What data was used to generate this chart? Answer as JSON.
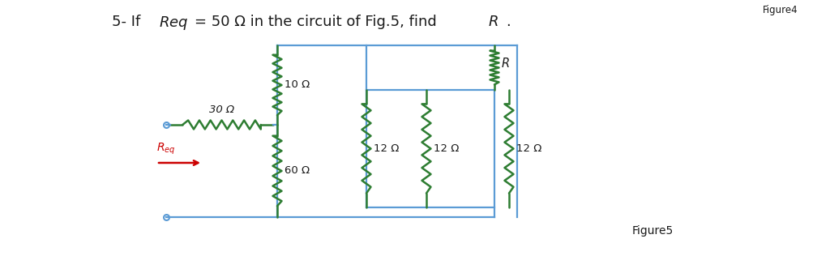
{
  "title": "5- If Req= 50 Ω in the circuit of Fig.5, find R.",
  "figure4_label": "Figure4",
  "figure5_label": "Figure5",
  "bg_color": "#ffffff",
  "wire_color": "#5b9bd5",
  "resistor_color": "#2e7d32",
  "text_color": "#1a1a1a",
  "req_color": "#cc0000",
  "resistor_labels": {
    "R30": "30 Ω",
    "R10": "10 Ω",
    "R60": "60 Ω",
    "R12a": "12 Ω",
    "R12b": "12 Ω",
    "R12c": "12 Ω",
    "RR": "R"
  },
  "req_label": "R_eq"
}
